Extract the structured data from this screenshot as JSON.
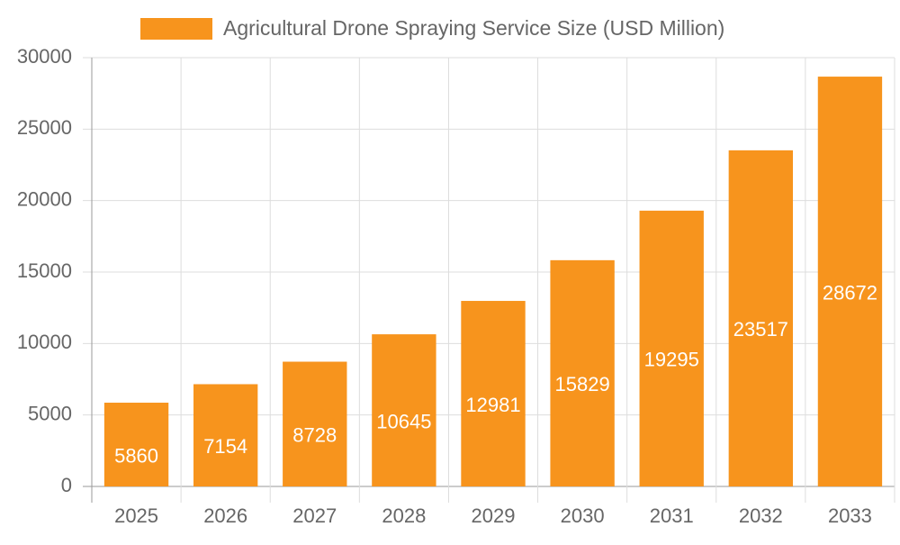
{
  "chart_data": {
    "type": "bar",
    "categories": [
      "2025",
      "2026",
      "2027",
      "2028",
      "2029",
      "2030",
      "2031",
      "2032",
      "2033"
    ],
    "series": [
      {
        "name": "Agricultural Drone Spraying Service Size (USD Million)",
        "color": "#f7941d",
        "values": [
          5860,
          7154,
          8728,
          10645,
          12981,
          15829,
          19295,
          23517,
          28672
        ]
      }
    ],
    "ylim": [
      0,
      30000
    ],
    "yticks": [
      0,
      5000,
      10000,
      15000,
      20000,
      25000,
      30000
    ],
    "grid": true
  }
}
